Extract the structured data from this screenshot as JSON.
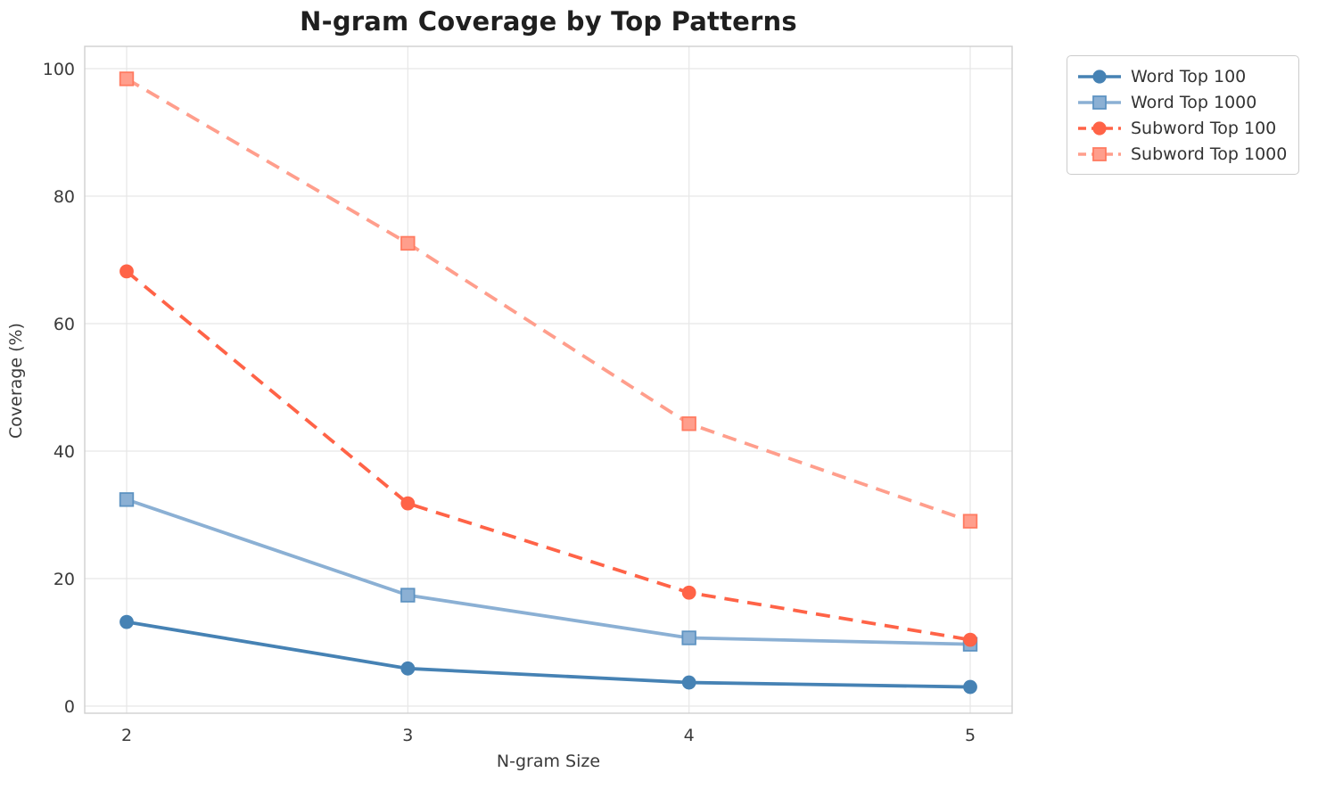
{
  "chart_data": {
    "type": "line",
    "title": "N-gram Coverage by Top Patterns",
    "xlabel": "N-gram Size",
    "ylabel": "Coverage (%)",
    "x": [
      2,
      3,
      4,
      5
    ],
    "x_tick_labels": [
      "2",
      "3",
      "4",
      "5"
    ],
    "y_ticks": [
      0,
      20,
      40,
      60,
      80,
      100
    ],
    "ylim": [
      0,
      100
    ],
    "xlim": [
      2,
      5
    ],
    "grid": true,
    "legend_position": "outside-top-right",
    "background_color": "#ffffff",
    "grid_color": "#e7e7e7",
    "spine_color": "#cfcfcf",
    "series": [
      {
        "name": "Word Top 100",
        "values": [
          13.2,
          5.9,
          3.7,
          3.0
        ],
        "color": "#4682B4",
        "marker_edge": "#4682B4",
        "marker": "circle",
        "linestyle": "solid"
      },
      {
        "name": "Word Top 1000",
        "values": [
          32.4,
          17.4,
          10.7,
          9.7
        ],
        "color": "#8BB0D4",
        "marker_edge": "#5E93C2",
        "marker": "square",
        "linestyle": "solid"
      },
      {
        "name": "Subword Top 100",
        "values": [
          68.2,
          31.8,
          17.8,
          10.4
        ],
        "color": "#FF6347",
        "marker_edge": "#FF6347",
        "marker": "circle",
        "linestyle": "dashed"
      },
      {
        "name": "Subword Top 1000",
        "values": [
          98.4,
          72.6,
          44.3,
          29.0
        ],
        "color": "#FF9E8C",
        "marker_edge": "#FF7B61",
        "marker": "square",
        "linestyle": "dashed"
      }
    ]
  }
}
